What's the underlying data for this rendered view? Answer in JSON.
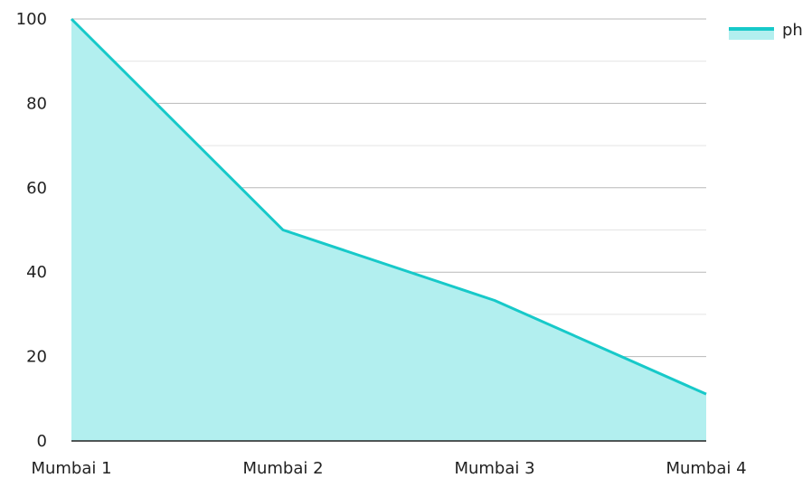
{
  "chart_data": {
    "type": "area",
    "categories": [
      "Mumbai 1",
      "Mumbai 2",
      "Mumbai 3",
      "Mumbai 4"
    ],
    "series": [
      {
        "name": "ph",
        "values": [
          100,
          50,
          33.3,
          11.1
        ]
      }
    ],
    "ylim": [
      0,
      100
    ],
    "yticks": [
      0,
      20,
      40,
      60,
      80,
      100
    ],
    "grid": true,
    "legend": "top-right",
    "colors": {
      "line": "#17C9C9",
      "fill": "#B2EFEF",
      "grid_major": "#B8B8B8",
      "grid_minor": "#E4E4E4",
      "axis": "#222222"
    }
  }
}
